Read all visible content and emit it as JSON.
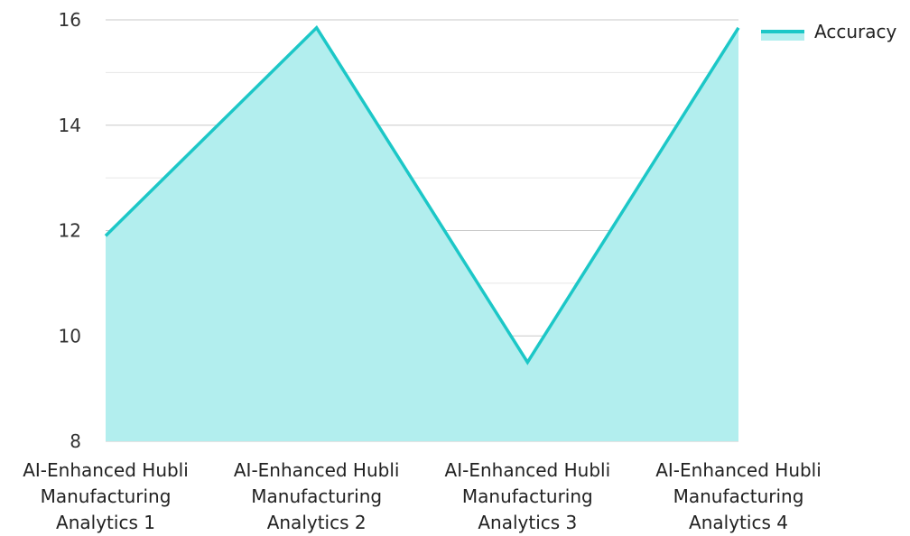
{
  "chart_data": {
    "type": "area",
    "title": "",
    "xlabel": "",
    "ylabel": "",
    "categories": [
      [
        "AI-Enhanced Hubli",
        "Manufacturing",
        "Analytics 1"
      ],
      [
        "AI-Enhanced Hubli",
        "Manufacturing",
        "Analytics 2"
      ],
      [
        "AI-Enhanced Hubli",
        "Manufacturing",
        "Analytics 3"
      ],
      [
        "AI-Enhanced Hubli",
        "Manufacturing",
        "Analytics 4"
      ]
    ],
    "series": [
      {
        "name": "Accuracy",
        "values": [
          11.9,
          15.85,
          9.5,
          15.85
        ],
        "color": "#1cc7c7",
        "fill": "#b2eeee"
      }
    ],
    "ylim": [
      8,
      16
    ],
    "yticks": [
      "8",
      "10",
      "12",
      "14",
      "16"
    ],
    "grid": true,
    "grid_color": "#d0d0d0",
    "legend": "top-right"
  }
}
